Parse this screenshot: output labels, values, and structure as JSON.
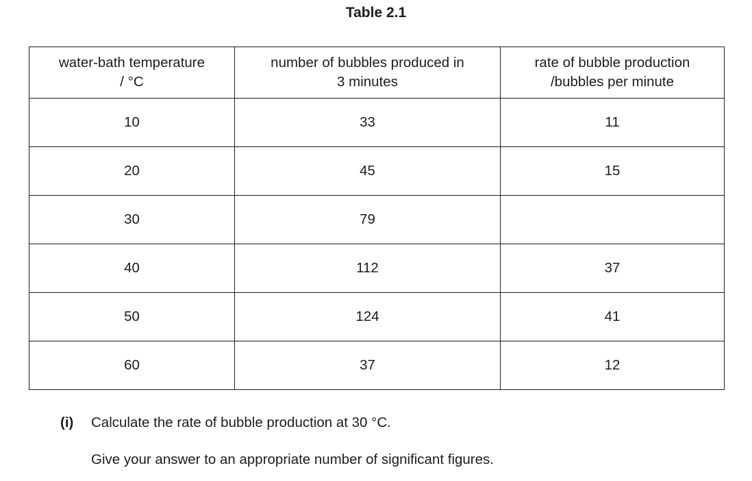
{
  "page": {
    "title": "Table 2.1"
  },
  "table": {
    "headers": [
      {
        "line1": "water-bath temperature",
        "line2": "/ °C"
      },
      {
        "line1": "number of bubbles produced in",
        "line2": "3 minutes"
      },
      {
        "line1": "rate of bubble production",
        "line2": "/bubbles per minute"
      }
    ],
    "rows": [
      [
        "10",
        "33",
        "11"
      ],
      [
        "20",
        "45",
        "15"
      ],
      [
        "30",
        "79",
        ""
      ],
      [
        "40",
        "112",
        "37"
      ],
      [
        "50",
        "124",
        "41"
      ],
      [
        "60",
        "37",
        "12"
      ]
    ]
  },
  "question": {
    "number": "(i)",
    "prompt": "Calculate the rate of bubble production at 30 °C.",
    "instruction": "Give your answer to an appropriate number of significant figures."
  },
  "colors": {
    "text": "#1c1c1c",
    "border": "#1c1c1c",
    "background": "#ffffff"
  }
}
